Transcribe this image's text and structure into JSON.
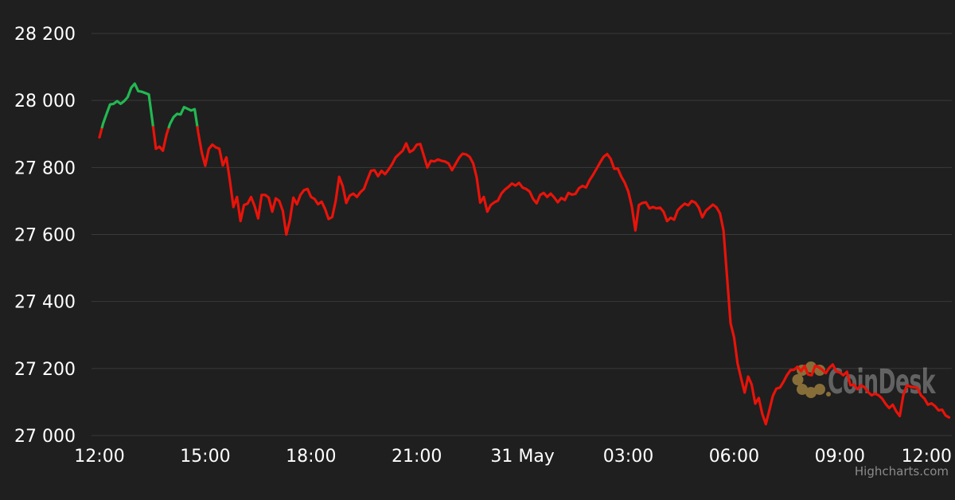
{
  "watermark": {
    "brand": "CoinDesk"
  },
  "credits": {
    "label": "Highcharts.com"
  },
  "colors": {
    "background": "#1f1f1f",
    "gridline": "#3a3a3a",
    "axis_label": "#ffffff",
    "up": "#23b852",
    "down": "#e8130a",
    "watermark_text": "rgba(255,255,255,0.30)",
    "watermark_icon": "#9a7c3e",
    "credits_text": "#8b8b8b"
  },
  "chart_data": {
    "type": "line",
    "title": "",
    "xlabel": "",
    "ylabel": "",
    "legend": "none",
    "grid": "horizontal-only",
    "x_unit": "hours since 12:00 (30 May)",
    "x_range": [
      -0.25,
      24.25
    ],
    "ylim": [
      27000,
      28200
    ],
    "zone_threshold": 27920,
    "zone_rule": "green when price >= threshold, red below",
    "x_ticks": [
      {
        "h": 0,
        "label": "12:00"
      },
      {
        "h": 3,
        "label": "15:00"
      },
      {
        "h": 6,
        "label": "18:00"
      },
      {
        "h": 9,
        "label": "21:00"
      },
      {
        "h": 12,
        "label": "31 May"
      },
      {
        "h": 15,
        "label": "03:00"
      },
      {
        "h": 18,
        "label": "06:00"
      },
      {
        "h": 21,
        "label": "09:00"
      },
      {
        "h": 24,
        "label": "12:00"
      }
    ],
    "y_ticks": [
      {
        "value": 27000,
        "label": "27 000"
      },
      {
        "value": 27200,
        "label": "27 200"
      },
      {
        "value": 27400,
        "label": "27 400"
      },
      {
        "value": 27600,
        "label": "27 600"
      },
      {
        "value": 27800,
        "label": "27 800"
      },
      {
        "value": 28000,
        "label": "28 000"
      },
      {
        "value": 28200,
        "label": "28 200"
      }
    ],
    "step_hours": 0.1,
    "prices": [
      27890,
      27930,
      27960,
      27988,
      27990,
      27998,
      27990,
      27998,
      28010,
      28038,
      28050,
      28028,
      28026,
      28022,
      28018,
      27940,
      27856,
      27862,
      27850,
      27898,
      27930,
      27950,
      27960,
      27958,
      27980,
      27975,
      27970,
      27974,
      27905,
      27845,
      27805,
      27855,
      27868,
      27860,
      27856,
      27806,
      27830,
      27760,
      27682,
      27712,
      27640,
      27688,
      27692,
      27712,
      27685,
      27648,
      27718,
      27718,
      27710,
      27668,
      27708,
      27700,
      27670,
      27600,
      27642,
      27710,
      27690,
      27718,
      27732,
      27736,
      27712,
      27706,
      27690,
      27698,
      27676,
      27646,
      27652,
      27700,
      27772,
      27744,
      27694,
      27716,
      27722,
      27712,
      27726,
      27736,
      27764,
      27790,
      27792,
      27774,
      27790,
      27780,
      27794,
      27810,
      27830,
      27840,
      27850,
      27872,
      27846,
      27852,
      27868,
      27870,
      27835,
      27800,
      27820,
      27818,
      27824,
      27820,
      27818,
      27812,
      27792,
      27810,
      27829,
      27841,
      27839,
      27832,
      27812,
      27770,
      27695,
      27712,
      27668,
      27688,
      27696,
      27701,
      27722,
      27734,
      27742,
      27752,
      27746,
      27754,
      27740,
      27736,
      27728,
      27706,
      27693,
      27718,
      27724,
      27712,
      27722,
      27710,
      27696,
      27709,
      27703,
      27724,
      27719,
      27721,
      27738,
      27745,
      27740,
      27762,
      27778,
      27796,
      27815,
      27832,
      27840,
      27826,
      27796,
      27797,
      27773,
      27754,
      27728,
      27684,
      27612,
      27688,
      27694,
      27696,
      27678,
      27682,
      27678,
      27680,
      27668,
      27640,
      27650,
      27644,
      27672,
      27683,
      27692,
      27687,
      27700,
      27695,
      27680,
      27651,
      27671,
      27680,
      27689,
      27681,
      27663,
      27612,
      27476,
      27335,
      27293,
      27215,
      27170,
      27128,
      27176,
      27152,
      27095,
      27112,
      27065,
      27034,
      27075,
      27118,
      27140,
      27143,
      27160,
      27180,
      27195,
      27196,
      27205,
      27192,
      27208,
      27182,
      27180,
      27208,
      27204,
      27196,
      27186,
      27202,
      27212,
      27191,
      27188,
      27180,
      27190,
      27150,
      27152,
      27138,
      27150,
      27144,
      27130,
      27120,
      27125,
      27120,
      27110,
      27094,
      27082,
      27092,
      27072,
      27058,
      27120,
      27150,
      27146,
      27144,
      27142,
      27120,
      27110,
      27092,
      27096,
      27088,
      27075,
      27077,
      27060,
      27054
    ]
  }
}
